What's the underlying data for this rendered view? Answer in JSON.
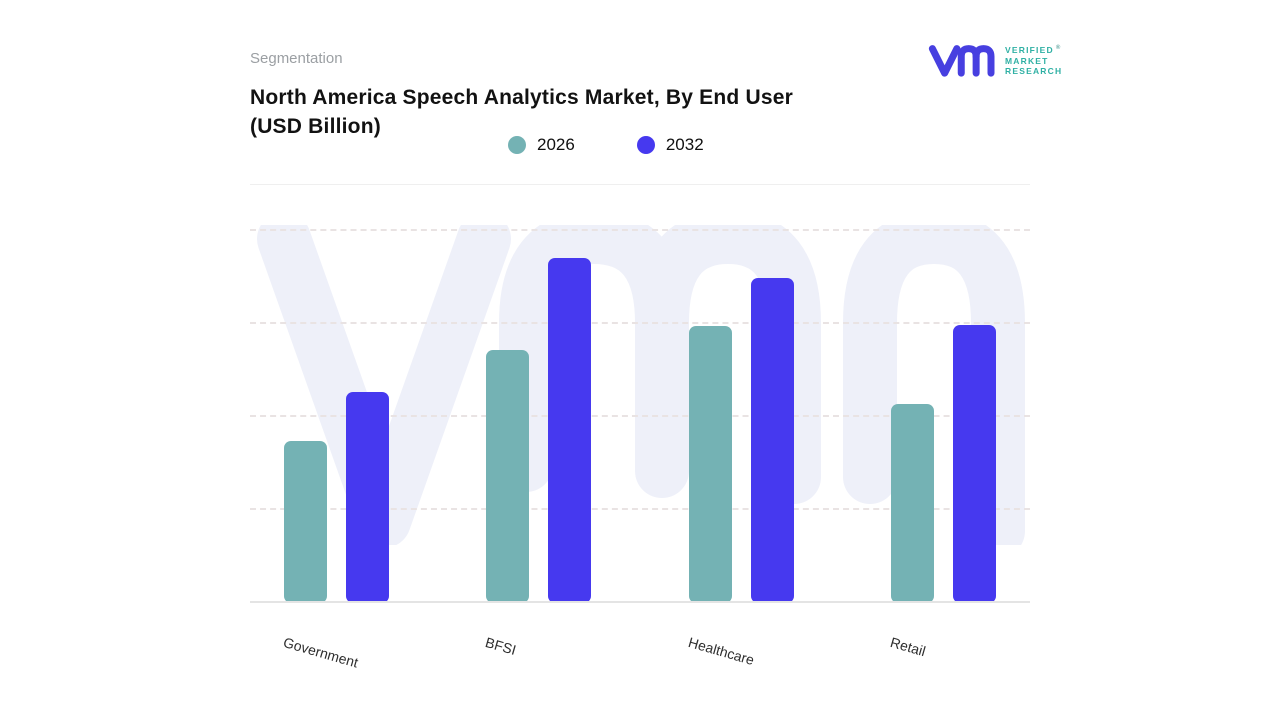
{
  "header": {
    "eyebrow": "Segmentation",
    "title_line1": "North America Speech Analytics Market, By End User",
    "title_line2": "(USD Billion)"
  },
  "logo": {
    "monogram": "vmr-monogram",
    "monogram_color": "#473fe0",
    "text_color": "#2fb0a4",
    "line1": "VERIFIED",
    "line2": "MARKET",
    "line3": "RESEARCH",
    "registered_mark": "®"
  },
  "chart_data": {
    "type": "bar",
    "title": "North America Speech Analytics Market, By End User (USD Billion)",
    "categories": [
      "Government",
      "BFSI",
      "Healthcare",
      "Retail"
    ],
    "series": [
      {
        "name": "2026",
        "color": "#74b2b4",
        "values": [
          1.74,
          2.72,
          2.98,
          2.14
        ]
      },
      {
        "name": "2032",
        "color": "#4639ef",
        "values": [
          2.27,
          3.7,
          3.49,
          2.99
        ]
      }
    ],
    "xlabel": "",
    "ylabel": "",
    "ylim": [
      0,
      4.5
    ],
    "gridline_values": [
      1,
      2,
      3,
      4
    ],
    "grid": "horizontal-dashed",
    "legend_position": "top-center",
    "value_note": "y-axis is unlabeled; values estimated in gridline units (USD Billion)",
    "watermark": "vmr-monogram",
    "watermark_color": "#eef0f9",
    "baseline_color": "#e4e4e4"
  }
}
